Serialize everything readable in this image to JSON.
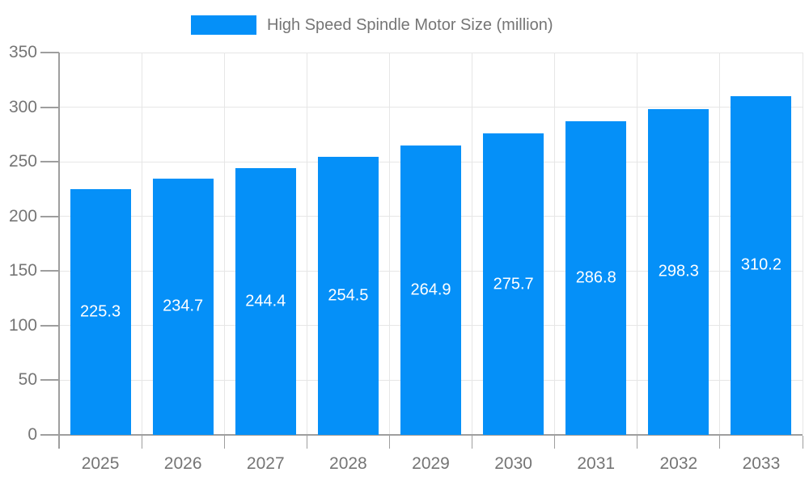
{
  "chart_data": {
    "type": "bar",
    "title": "High Speed Spindle Motor Size (million)",
    "categories": [
      "2025",
      "2026",
      "2027",
      "2028",
      "2029",
      "2030",
      "2031",
      "2032",
      "2033"
    ],
    "values": [
      225.3,
      234.7,
      244.4,
      254.5,
      264.9,
      275.7,
      286.8,
      298.3,
      310.2
    ],
    "value_labels": [
      "225.3",
      "234.7",
      "244.4",
      "254.5",
      "264.9",
      "275.7",
      "286.8",
      "298.3",
      "310.2"
    ],
    "xlabel": "",
    "ylabel": "",
    "ylim": [
      0,
      350
    ],
    "ytick_step": 50,
    "ytick_labels": [
      "0",
      "50",
      "100",
      "150",
      "200",
      "250",
      "300",
      "350"
    ],
    "grid": true,
    "legend_position": "top",
    "colors": {
      "bar": "#0590f8",
      "bar_value_text": "#ffffff",
      "gridline": "#e6e6e6",
      "axis_line": "#9e9e9e",
      "axis_text": "#757575",
      "background": "#ffffff"
    }
  }
}
